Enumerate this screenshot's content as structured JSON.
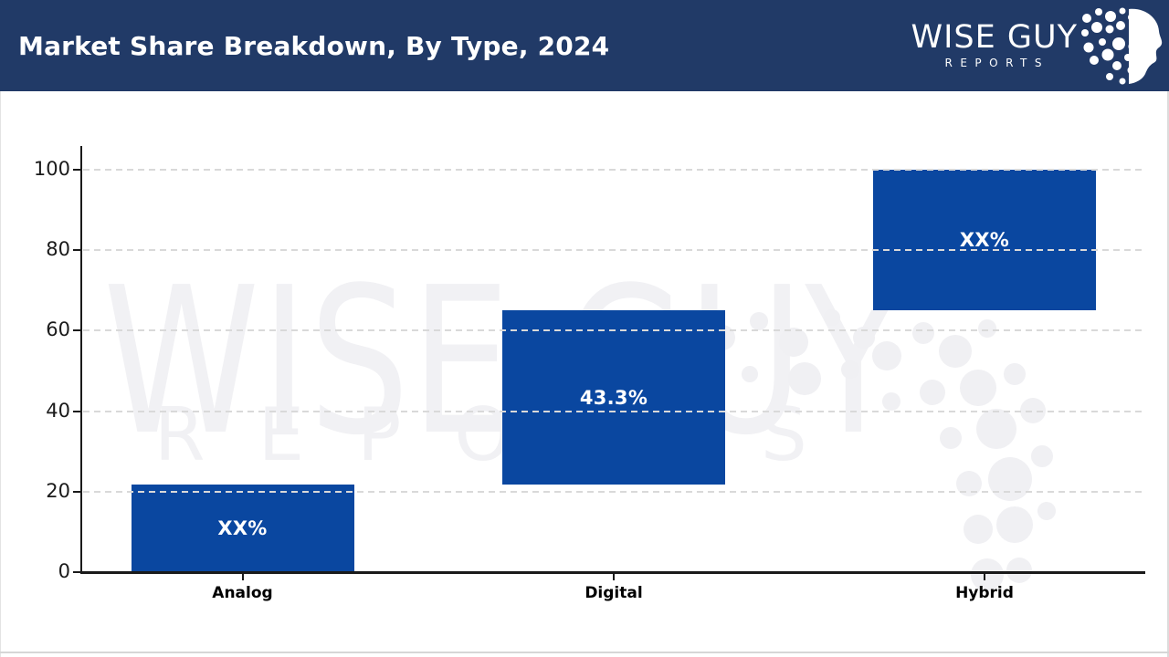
{
  "header": {
    "title": "Market Share Breakdown, By Type, 2024",
    "logo": {
      "line1": "WISE GUY",
      "line2": "REPORTS"
    }
  },
  "watermark": {
    "line1": "WISE GUY",
    "line2": "REPORTS"
  },
  "colors": {
    "header_bg": "#213a67",
    "bar": "#0a47a0",
    "bar_label": "#ffffff",
    "grid": "#d9d9d9",
    "axis": "#1a1a1a",
    "watermark": "#f1f1f4"
  },
  "chart_data": {
    "type": "bar",
    "variant": "floating-cumulative-segments",
    "title": "Market Share Breakdown, By Type, 2024",
    "categories": [
      "Analog",
      "Digital",
      "Hybrid"
    ],
    "segments": [
      {
        "category": "Analog",
        "start": 0,
        "end": 21.7,
        "label": "XX%"
      },
      {
        "category": "Digital",
        "start": 21.7,
        "end": 65.0,
        "label": "43.3%"
      },
      {
        "category": "Hybrid",
        "start": 65.0,
        "end": 100.0,
        "label": "XX%"
      }
    ],
    "ylim": [
      0,
      100
    ],
    "yticks": [
      0,
      20,
      40,
      60,
      80,
      100
    ],
    "xlabel": "",
    "ylabel": "",
    "grid": "horizontal-dashed",
    "legend": "none",
    "bar_color": "#0a47a0"
  }
}
